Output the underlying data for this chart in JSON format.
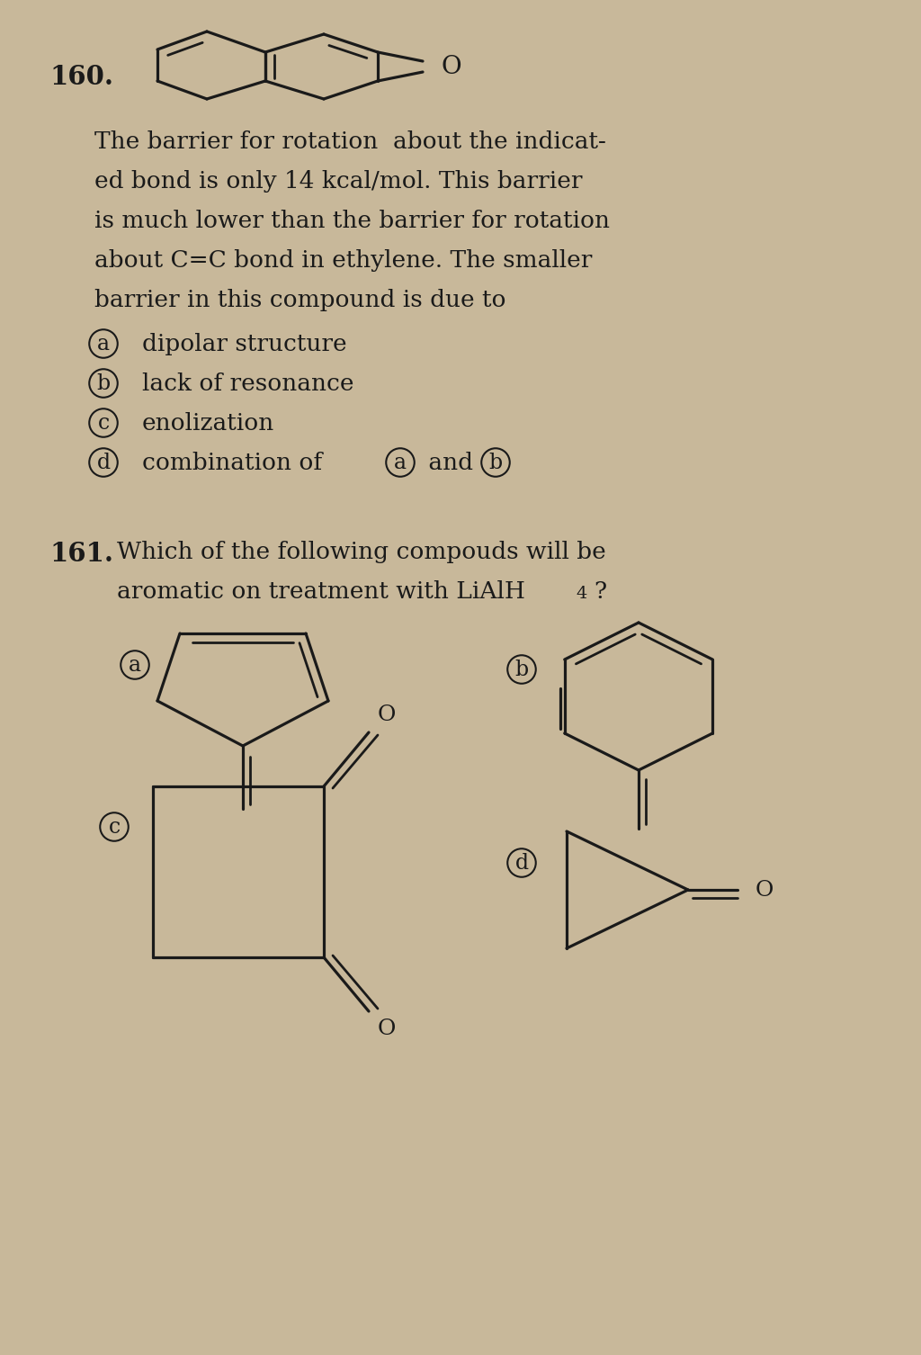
{
  "bg_color": "#c8b89a",
  "text_color": "#1a1a1a",
  "lc": "#1a1a1a",
  "lw": 2.0,
  "font_size_q": 21,
  "font_size_body": 19,
  "q160_lines": [
    "The barrier for rotation  about the indicat-",
    "ed bond is only 14 kcal/mol. This barrier",
    "is much lower than the barrier for rotation",
    "about C=C bond in ethylene. The smaller",
    "barrier in this compound is due to"
  ],
  "q160_options_letters": [
    "a",
    "b",
    "c",
    "d"
  ],
  "q160_options_texts": [
    "dipolar structure",
    "lack of resonance",
    "enolization",
    "combination of"
  ],
  "q161_line1": "Which of the following compouds will be",
  "q161_line2": "aromatic on treatment with LiAlH",
  "q161_sub": "4",
  "q161_end": "?"
}
